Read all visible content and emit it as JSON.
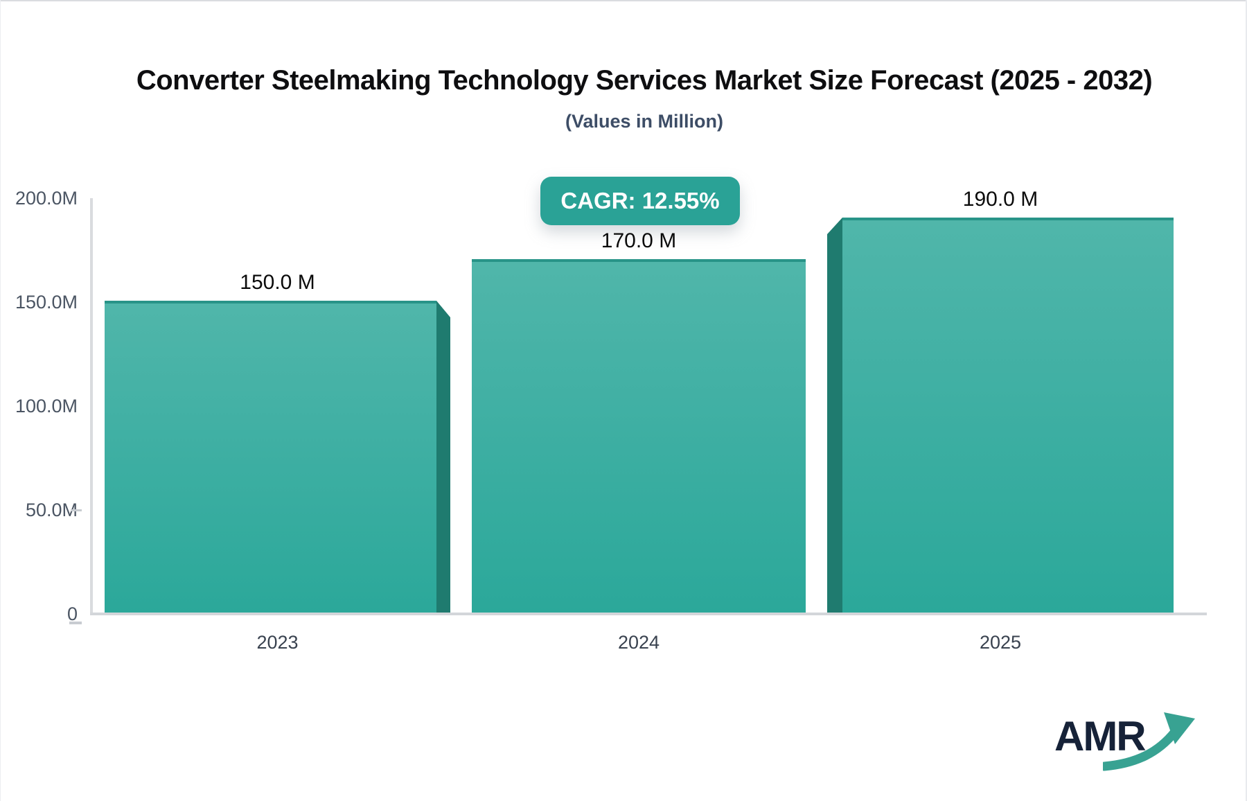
{
  "title": "Converter Steelmaking Technology Services Market Size Forecast (2025 - 2032)",
  "subtitle": "(Values in Million)",
  "cagr_badge": "CAGR: 12.55%",
  "logo_text": "AMR",
  "chart_data": {
    "type": "bar",
    "title": "Converter Steelmaking Technology Services Market Size Forecast (2025 - 2032)",
    "subtitle": "(Values in Million)",
    "categories": [
      "2023",
      "2024",
      "2025"
    ],
    "values": [
      150,
      170,
      190
    ],
    "unit": "Million",
    "value_labels": [
      "150.0 M",
      "170.0 M",
      "190.0 M"
    ],
    "cagr_percent": 12.55,
    "xlabel": "",
    "ylabel": "",
    "ylim": [
      0,
      200
    ],
    "yticks": [
      "200.0M",
      "150.0M",
      "100.0M",
      "50.0M",
      "0"
    ],
    "grid": false,
    "legend": false
  },
  "colors": {
    "bar_top": "#50b6aa",
    "bar_bottom": "#2ba89a",
    "bar_border_top": "#289488",
    "bar_side_3d": "#1f7b6f",
    "badge_background": "#2aa296",
    "badge_text": "#ffffff",
    "title_text": "#0e0e10",
    "subtitle_text": "#3d4d66",
    "axis_line": "#d9dbde",
    "y_label_text": "#4b5563",
    "x_label_text": "#39424f",
    "logo_navy": "#162238",
    "logo_teal": "#38a292"
  }
}
